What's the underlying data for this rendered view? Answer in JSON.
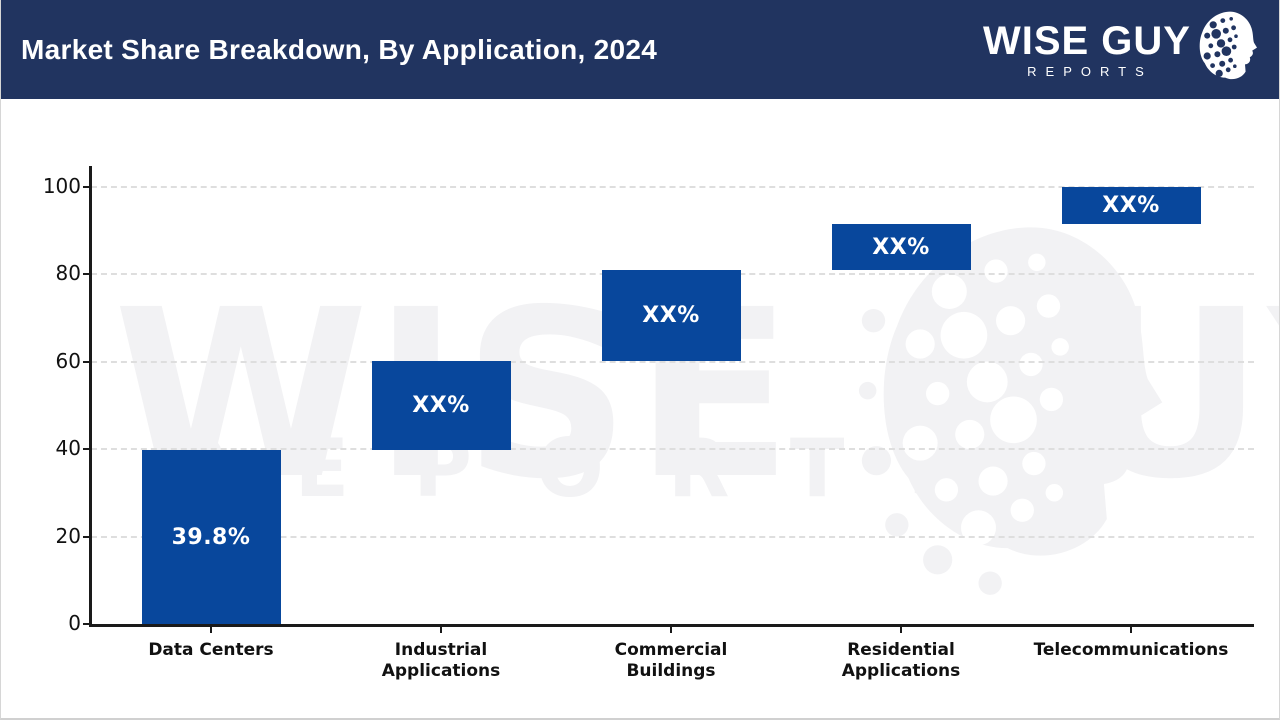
{
  "header": {
    "title": "Market Share Breakdown, By Application, 2024",
    "logo": {
      "name": "WISE GUY",
      "subtext": "REPORTS"
    }
  },
  "watermark": {
    "word": "WISE GUY",
    "subtext": "REPORTS"
  },
  "chart_data": {
    "type": "bar",
    "subtype": "waterfall",
    "title": "Market Share Breakdown, By Application, 2024",
    "categories": [
      "Data Centers",
      "Industrial Applications",
      "Commercial Buildings",
      "Residential Applications",
      "Telecommunications"
    ],
    "category_lines": [
      [
        "Data Centers"
      ],
      [
        "Industrial",
        "Applications"
      ],
      [
        "Commercial",
        "Buildings"
      ],
      [
        "Residential",
        "Applications"
      ],
      [
        "Telecommunications"
      ]
    ],
    "series": [
      {
        "name": "Market share (%)",
        "segments": [
          {
            "category": "Data Centers",
            "start": 0,
            "end": 39.8
          },
          {
            "category": "Industrial Applications",
            "start": 39.8,
            "end": 60.2
          },
          {
            "category": "Commercial Buildings",
            "start": 60.2,
            "end": 81.0
          },
          {
            "category": "Residential Applications",
            "start": 81.0,
            "end": 91.5
          },
          {
            "category": "Telecommunications",
            "start": 91.5,
            "end": 100
          }
        ]
      }
    ],
    "bar_labels": [
      "39.8%",
      "XX%",
      "XX%",
      "XX%",
      "XX%"
    ],
    "xlabel": "",
    "ylabel": "",
    "ylim": [
      0,
      100
    ],
    "yticks": [
      0,
      20,
      40,
      60,
      80,
      100
    ],
    "grid": "horizontal-dashed",
    "legend": "none"
  },
  "colors": {
    "header_bg": "#213460",
    "title_text": "#ffffff",
    "bar": "#08479c",
    "bar_label_text": "#ffffff",
    "axis": "#1a1a1a",
    "gridline": "#dedede",
    "watermark": "#f2f2f4",
    "tick_label": "#111111"
  }
}
